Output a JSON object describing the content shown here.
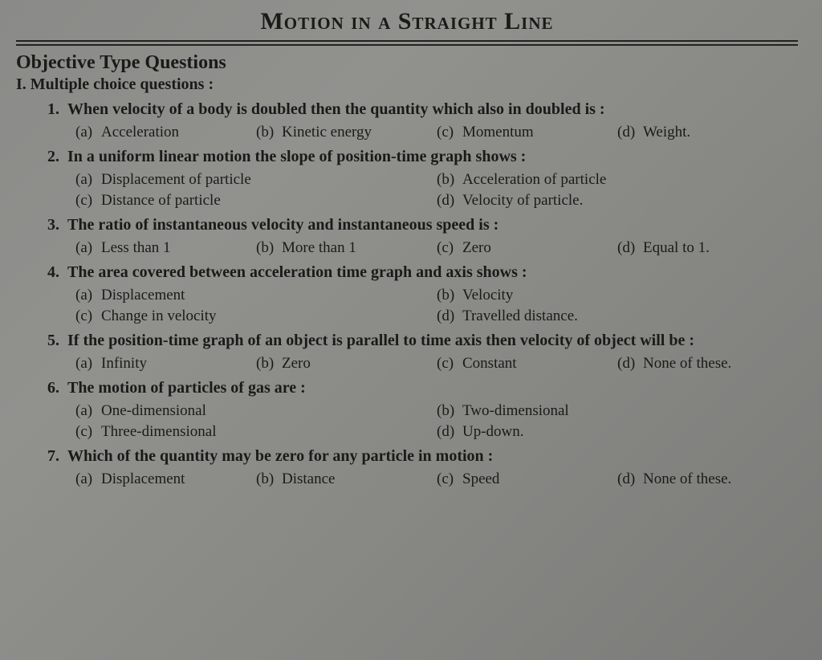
{
  "title": "Motion in a Straight Line",
  "sectionHeading": "Objective Type Questions",
  "subsection": "I. Multiple choice questions :",
  "questions": [
    {
      "num": "1.",
      "text": "When velocity of a body is doubled then the quantity which also in doubled is :",
      "cols": 4,
      "options": [
        {
          "l": "(a)",
          "t": "Acceleration"
        },
        {
          "l": "(b)",
          "t": "Kinetic energy"
        },
        {
          "l": "(c)",
          "t": "Momentum"
        },
        {
          "l": "(d)",
          "t": "Weight."
        }
      ]
    },
    {
      "num": "2.",
      "text": "In a uniform linear motion the slope of position-time graph shows :",
      "cols": 2,
      "options": [
        {
          "l": "(a)",
          "t": "Displacement of particle"
        },
        {
          "l": "(b)",
          "t": "Acceleration of particle"
        },
        {
          "l": "(c)",
          "t": "Distance of particle"
        },
        {
          "l": "(d)",
          "t": "Velocity of particle."
        }
      ]
    },
    {
      "num": "3.",
      "text": "The ratio of instantaneous velocity and instantaneous speed is :",
      "cols": 4,
      "options": [
        {
          "l": "(a)",
          "t": "Less than 1"
        },
        {
          "l": "(b)",
          "t": "More than 1"
        },
        {
          "l": "(c)",
          "t": "Zero"
        },
        {
          "l": "(d)",
          "t": "Equal to 1."
        }
      ]
    },
    {
      "num": "4.",
      "text": "The area covered between acceleration time graph and axis shows :",
      "cols": 2,
      "options": [
        {
          "l": "(a)",
          "t": "Displacement"
        },
        {
          "l": "(b)",
          "t": "Velocity"
        },
        {
          "l": "(c)",
          "t": "Change in velocity"
        },
        {
          "l": "(d)",
          "t": "Travelled distance."
        }
      ]
    },
    {
      "num": "5.",
      "text": "If the position-time graph of an object is parallel to time axis then velocity of object will be :",
      "cols": 4,
      "options": [
        {
          "l": "(a)",
          "t": "Infinity"
        },
        {
          "l": "(b)",
          "t": "Zero"
        },
        {
          "l": "(c)",
          "t": "Constant"
        },
        {
          "l": "(d)",
          "t": "None of these."
        }
      ]
    },
    {
      "num": "6.",
      "text": "The motion of particles of gas are :",
      "cols": 2,
      "options": [
        {
          "l": "(a)",
          "t": "One-dimensional"
        },
        {
          "l": "(b)",
          "t": "Two-dimensional"
        },
        {
          "l": "(c)",
          "t": "Three-dimensional"
        },
        {
          "l": "(d)",
          "t": "Up-down."
        }
      ]
    },
    {
      "num": "7.",
      "text": "Which of the quantity may be zero for any particle in motion :",
      "cols": 4,
      "options": [
        {
          "l": "(a)",
          "t": "Displacement"
        },
        {
          "l": "(b)",
          "t": "Distance"
        },
        {
          "l": "(c)",
          "t": "Speed"
        },
        {
          "l": "(d)",
          "t": "None of these."
        }
      ]
    }
  ]
}
